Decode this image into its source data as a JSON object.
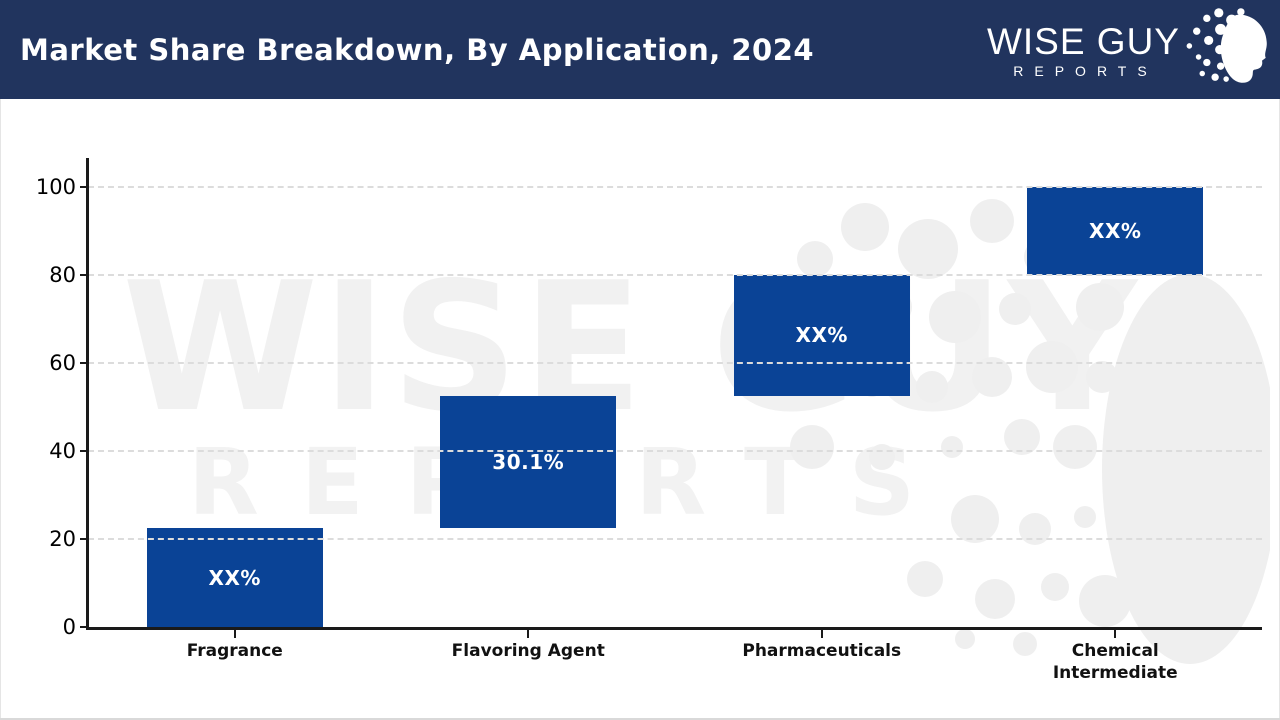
{
  "header": {
    "title": "Market Share Breakdown, By Application, 2024",
    "background_color": "#21345E",
    "logo": {
      "line1": "WISE GUY",
      "line2": "REPORTS"
    }
  },
  "watermark": {
    "line1": "WISE GUY",
    "line2": "REPORTS"
  },
  "chart_data": {
    "type": "bar",
    "subtype": "waterfall",
    "title": "Market Share Breakdown, By Application, 2024",
    "categories": [
      "Fragrance",
      "Flavoring Agent",
      "Pharmaceuticals",
      "Chemical Intermediate"
    ],
    "segments": [
      {
        "category": "Fragrance",
        "start": 0,
        "end": 22.5,
        "label": "XX%"
      },
      {
        "category": "Flavoring Agent",
        "start": 22.5,
        "end": 52.6,
        "label": "30.1%"
      },
      {
        "category": "Pharmaceuticals",
        "start": 52.6,
        "end": 80,
        "label": "XX%"
      },
      {
        "category": "Chemical Intermediate",
        "start": 80,
        "end": 100,
        "label": "XX%"
      }
    ],
    "ylim": [
      0,
      100
    ],
    "yticks": [
      0,
      20,
      40,
      60,
      80,
      100
    ],
    "grid": "horizontal-dashed",
    "legend": "none",
    "bar_color": "#0A4396",
    "bar_label_color": "#FFFFFF",
    "axis_color": "#1a1a1a",
    "gridline_color": "#dcdcdc"
  }
}
